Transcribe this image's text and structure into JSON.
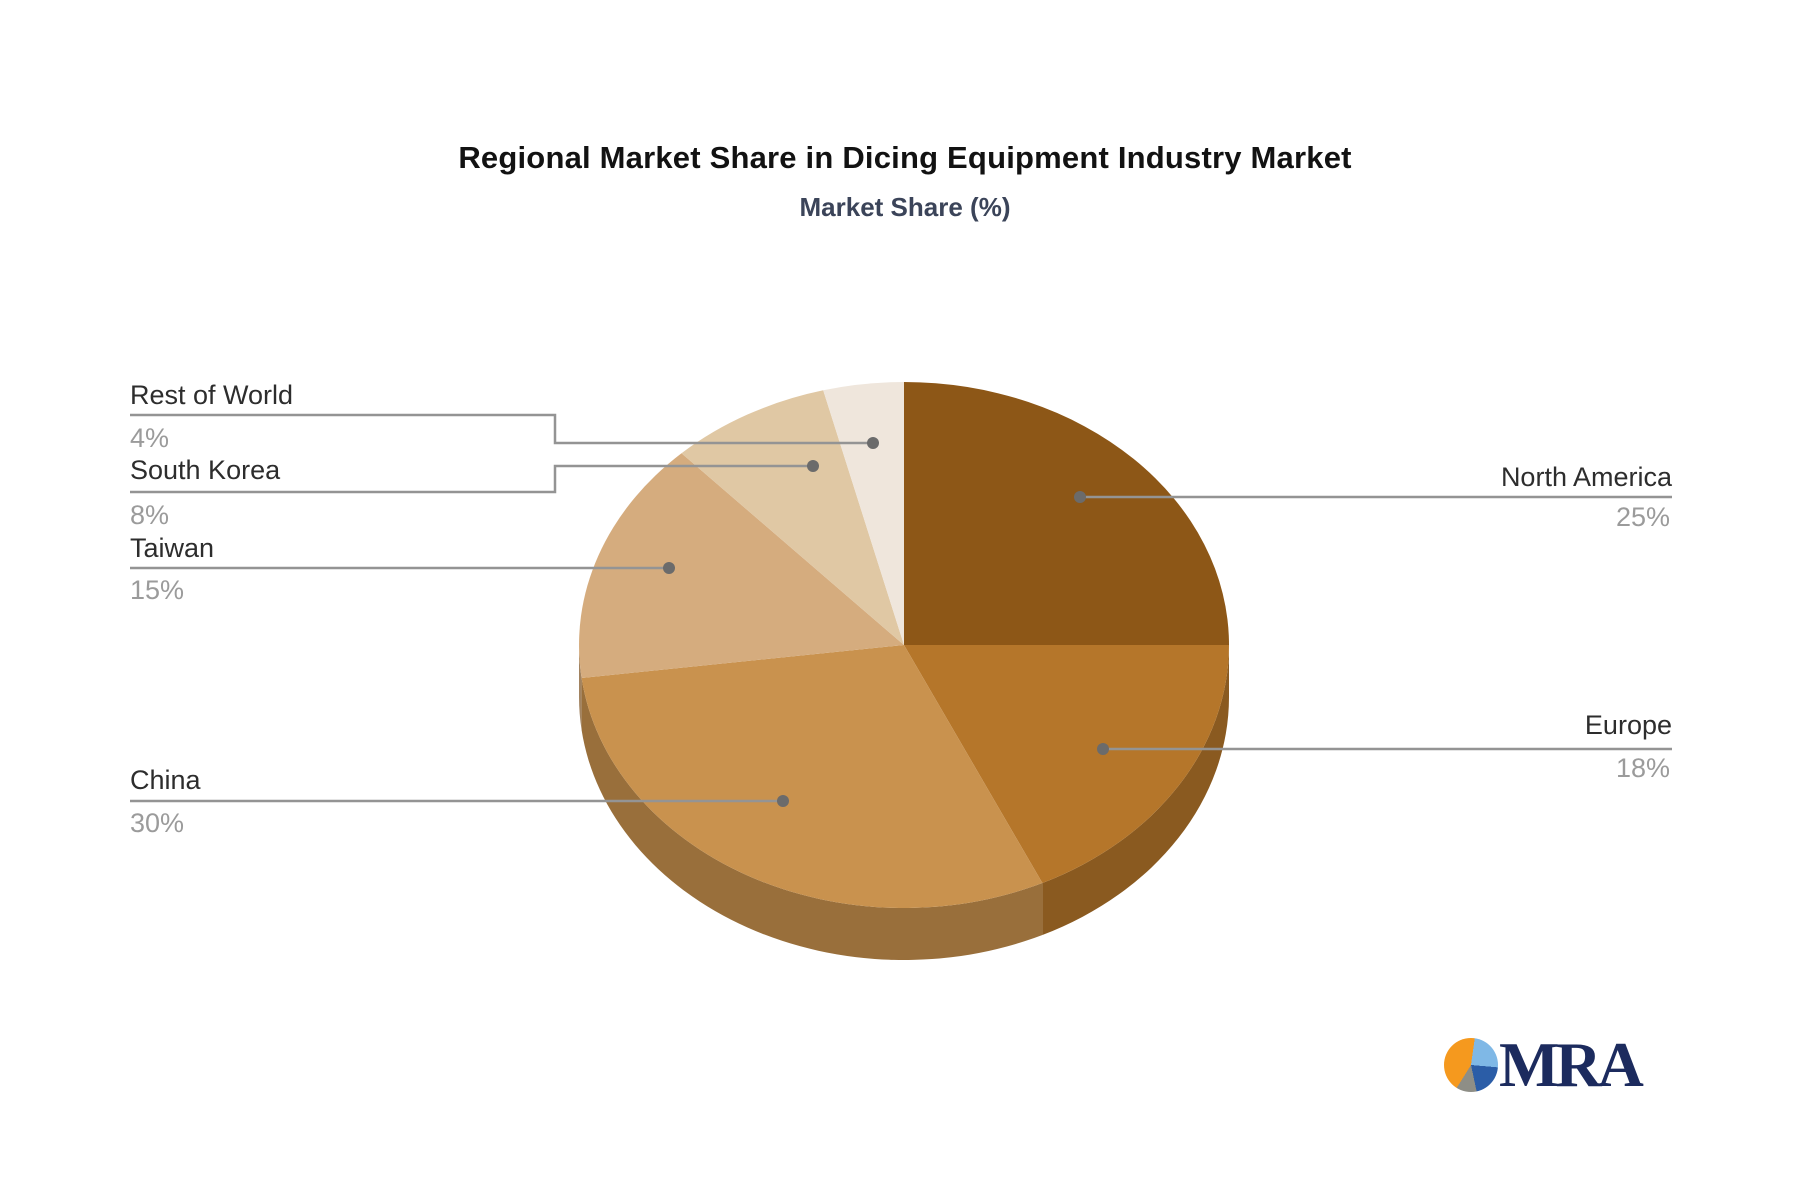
{
  "chart_data": {
    "type": "pie",
    "title": "Regional Market Share in Dicing Equipment Industry Market",
    "subtitle": "Market Share (%)",
    "unit": "%",
    "effect": "3d",
    "start_position": "12-oclock-clockwise",
    "slices": [
      {
        "label": "North America",
        "value": 25,
        "pct_label": "25%",
        "color": "#8D5717",
        "label_side": "right"
      },
      {
        "label": "Europe",
        "value": 18,
        "pct_label": "18%",
        "color": "#B5762A",
        "label_side": "right"
      },
      {
        "label": "China",
        "value": 30,
        "pct_label": "30%",
        "color": "#C9924E",
        "label_side": "left"
      },
      {
        "label": "Taiwan",
        "value": 15,
        "pct_label": "15%",
        "color": "#D5AC7E",
        "label_side": "left"
      },
      {
        "label": "South Korea",
        "value": 8,
        "pct_label": "8%",
        "color": "#E0C8A4",
        "label_side": "left"
      },
      {
        "label": "Rest of World",
        "value": 4,
        "pct_label": "4%",
        "color": "#EFE6DC",
        "label_side": "left"
      }
    ],
    "leader_line_color": "#949494",
    "label_name_color": "#2d2d2d",
    "label_pct_color": "#9b9b9b",
    "title_color": "#121212",
    "subtitle_color": "#3b4459"
  },
  "brand": {
    "logo_text": "MRA",
    "text_color": "#1c2b5e",
    "icon_colors": {
      "orange": "#F5991E",
      "light_blue": "#7FB8E6",
      "dark_blue": "#2B5DA7",
      "gray": "#8E8E86"
    }
  }
}
